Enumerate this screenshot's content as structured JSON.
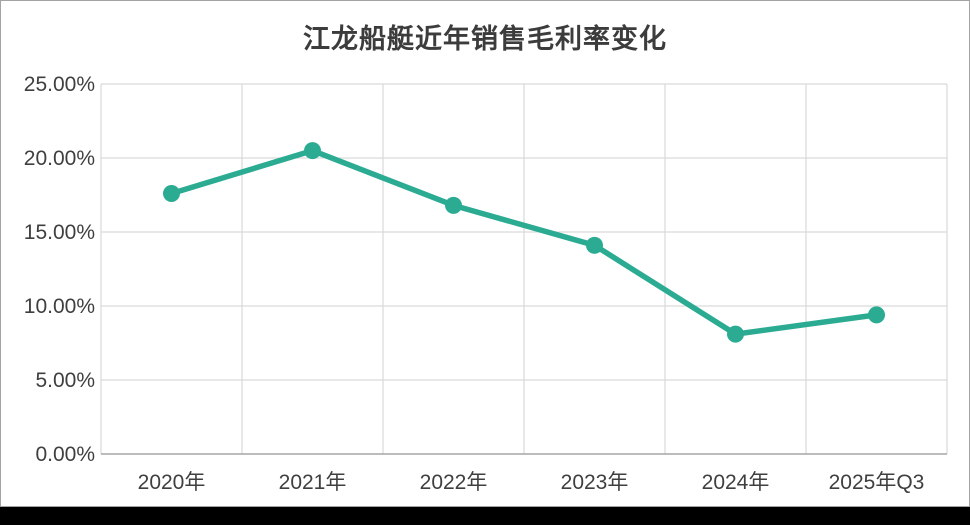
{
  "chart_data": {
    "type": "line",
    "title": "江龙船艇近年销售毛利率变化",
    "categories": [
      "2020年",
      "2021年",
      "2022年",
      "2023年",
      "2024年",
      "2025年Q3"
    ],
    "values": [
      17.6,
      20.5,
      16.8,
      14.1,
      8.1,
      9.4
    ],
    "xlabel": "",
    "ylabel": "",
    "y_axis": {
      "min": 0,
      "max": 25,
      "step": 5,
      "tick_labels": [
        "0.00%",
        "5.00%",
        "10.00%",
        "15.00%",
        "20.00%",
        "25.00%"
      ]
    },
    "grid": true,
    "legend": "none",
    "colors": {
      "line": "#2bab92",
      "marker": "#2bab92",
      "gridline": "#d9d9d9",
      "axis_line": "#a6a6a6",
      "tick_text": "#3f3f3f",
      "title_text": "#3c3c3c"
    }
  }
}
